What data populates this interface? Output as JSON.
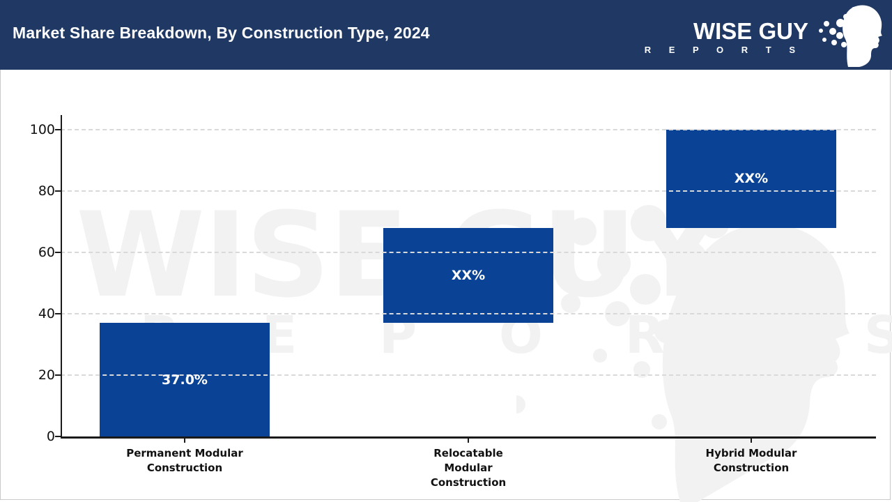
{
  "header": {
    "title": "Market Share Breakdown, By Construction Type, 2024",
    "logo": {
      "line1": "WISE GUY",
      "line2": "R E P O R T S"
    }
  },
  "watermark": {
    "line1": "WISE GUY",
    "line2": "R E P O R T S"
  },
  "colors": {
    "header_bg": "#1f3864",
    "bar": "#0a4396",
    "grid": "#d9d9d9",
    "axis": "#1a1a1a",
    "value_label": "#ffffff",
    "watermark": "#f2f2f2"
  },
  "chart_data": {
    "type": "bar",
    "subtype": "waterfall",
    "title": "Market Share Breakdown, By Construction Type, 2024",
    "categories": [
      [
        "Permanent Modular",
        "Construction"
      ],
      [
        "Relocatable",
        "Modular",
        "Construction"
      ],
      [
        "Hybrid Modular",
        "Construction"
      ]
    ],
    "segments": [
      {
        "category": "Permanent Modular Construction",
        "start": 0,
        "end": 37,
        "label": "37.0%"
      },
      {
        "category": "Relocatable Modular Construction",
        "start": 37,
        "end": 68,
        "label": "XX%"
      },
      {
        "category": "Hybrid Modular Construction",
        "start": 68,
        "end": 100,
        "label": "XX%"
      }
    ],
    "ylim": [
      0,
      100
    ],
    "yticks": [
      0,
      20,
      40,
      60,
      80,
      100
    ],
    "grid": "horizontal-dashed",
    "legend": "none"
  }
}
